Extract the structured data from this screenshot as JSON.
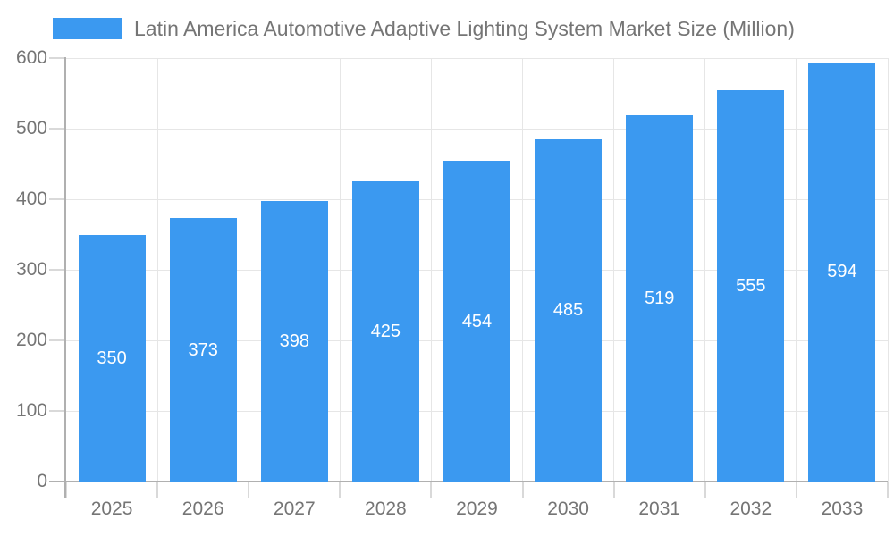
{
  "chart_data": {
    "type": "bar",
    "title": "Latin America Automotive Adaptive Lighting System Market Size (Million)",
    "categories": [
      "2025",
      "2026",
      "2027",
      "2028",
      "2029",
      "2030",
      "2031",
      "2032",
      "2033"
    ],
    "values": [
      350,
      373,
      398,
      425,
      454,
      485,
      519,
      555,
      594
    ],
    "xlabel": "",
    "ylabel": "",
    "ylim": [
      0,
      600
    ],
    "yticks": [
      0,
      100,
      200,
      300,
      400,
      500,
      600
    ],
    "grid": true,
    "legend_position": "top-left",
    "colors": {
      "bar": "#3B99F0",
      "bar_label_text": "#ffffff",
      "axis_text": "#757575",
      "legend_text": "#757575",
      "gridline": "#e6e6e6",
      "axis_line": "#b0b0b0",
      "tick_line": "#d9d9d9",
      "background": "#ffffff"
    }
  }
}
